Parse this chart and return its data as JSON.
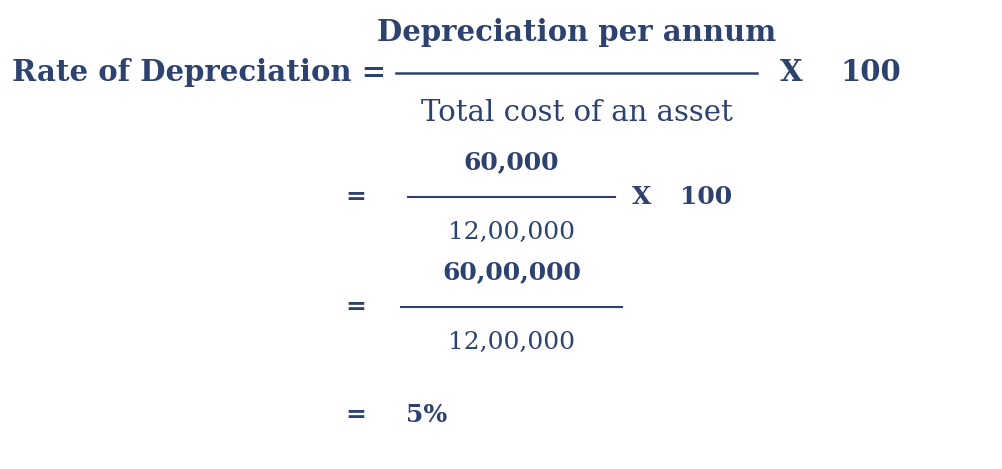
{
  "bg_color": "#ffffff",
  "text_color": "#2e4270",
  "figsize": [
    10.03,
    4.69
  ],
  "dpi": 100,
  "formula_label": "Rate of Depreciation =",
  "formula_numerator": "Depreciation per annum",
  "formula_denominator": "Total cost of an asset",
  "formula_x": "X",
  "formula_100": "100",
  "line1_eq": "=",
  "line1_num": "60,000",
  "line1_den": "12,00,000",
  "line1_x": "X",
  "line1_100": "100",
  "line2_eq": "=",
  "line2_num": "60,00,000",
  "line2_den": "12,00,000",
  "line3_eq": "=",
  "line3_val": "5%",
  "font_size_main": 21,
  "font_size_calc": 18
}
